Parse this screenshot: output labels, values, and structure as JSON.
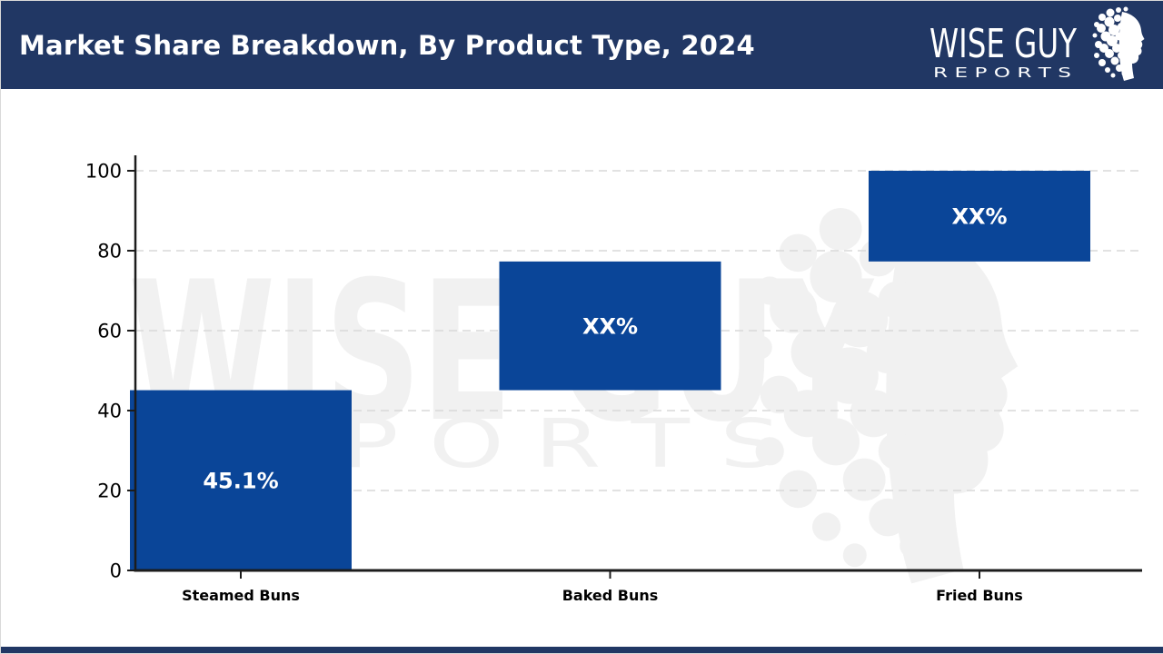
{
  "header": {
    "title": "Market Share Breakdown, By Product Type, 2024",
    "bg_color": "#213764",
    "text_color": "#ffffff",
    "logo": {
      "line1": "WISE GUY",
      "line2": "R E P O R T S"
    }
  },
  "watermark": {
    "line1": "WISE GUY",
    "line2": "R E P O R T S",
    "color": "#f1f1f1"
  },
  "chart_data": {
    "type": "bar",
    "subtype": "floating-waterfall",
    "title": "Market Share Breakdown, By Product Type, 2024",
    "categories": [
      "Steamed Buns",
      "Baked Buns",
      "Fried Buns"
    ],
    "segments": [
      {
        "category": "Steamed Buns",
        "start": 0,
        "end": 45.1,
        "label": "45.1%"
      },
      {
        "category": "Baked Buns",
        "start": 45.1,
        "end": 77.3,
        "label": "XX%"
      },
      {
        "category": "Fried Buns",
        "start": 77.3,
        "end": 100,
        "label": "XX%"
      }
    ],
    "xlabel": "",
    "ylabel": "",
    "yticks": [
      0,
      20,
      40,
      60,
      80,
      100
    ],
    "ylim": [
      0,
      105
    ],
    "grid": {
      "horizontal": true,
      "style": "dashed",
      "color": "#d9d9d9"
    },
    "legend": "none",
    "bar_color": "#0a4598",
    "bar_label_color": "#ffffff",
    "axis_color": "#1c1c1c",
    "tick_label_color": "#000000"
  },
  "footer": {
    "bg_color": "#213764"
  }
}
